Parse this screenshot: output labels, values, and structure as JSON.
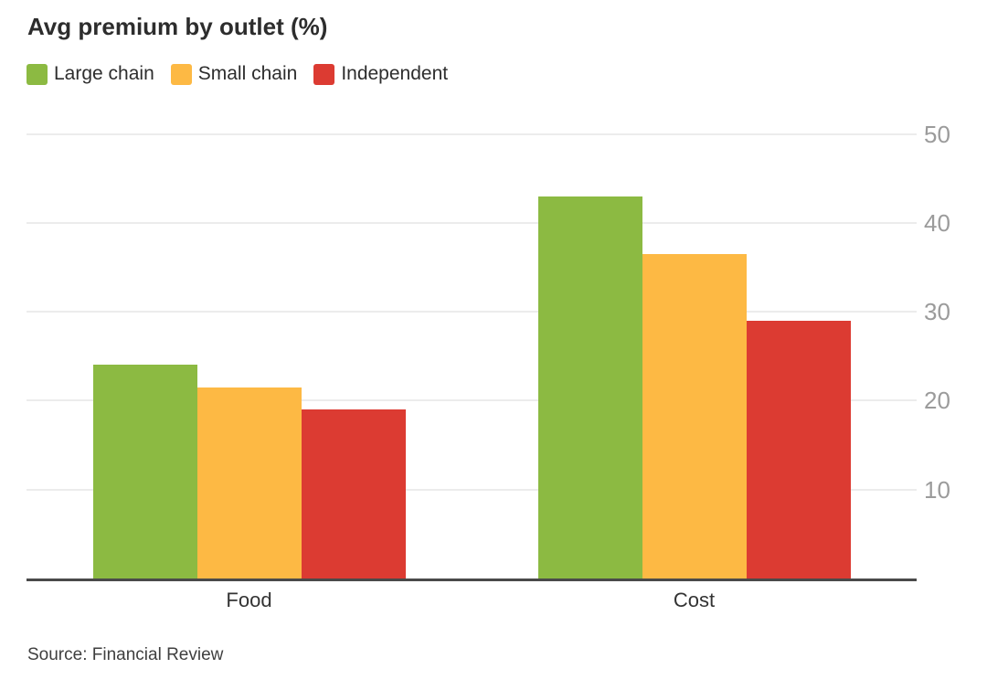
{
  "header": {
    "title": "Avg premium by outlet (%)"
  },
  "chart_data": {
    "type": "bar",
    "title": "Avg premium by outlet (%)",
    "categories": [
      "Food",
      "Cost"
    ],
    "series": [
      {
        "name": "Large chain",
        "color": "#8CBA42",
        "values": [
          24,
          43
        ]
      },
      {
        "name": "Small chain",
        "color": "#FDB944",
        "values": [
          21.5,
          36.5
        ]
      },
      {
        "name": "Independent",
        "color": "#DC3B32",
        "values": [
          19,
          29
        ]
      }
    ],
    "xlabel": "",
    "ylabel": "",
    "ylim": [
      0,
      50
    ],
    "yticks": [
      10,
      20,
      30,
      40,
      50
    ],
    "ytick_side": "right",
    "grid": true,
    "legend_position": "top-left"
  },
  "footer": {
    "source": "Source: Financial Review"
  },
  "colors": {
    "grid": "#ececec",
    "axis": "#4a4a4a",
    "tick_label": "#9b9b9b",
    "text": "#2d2d2d",
    "background": "#ffffff"
  }
}
